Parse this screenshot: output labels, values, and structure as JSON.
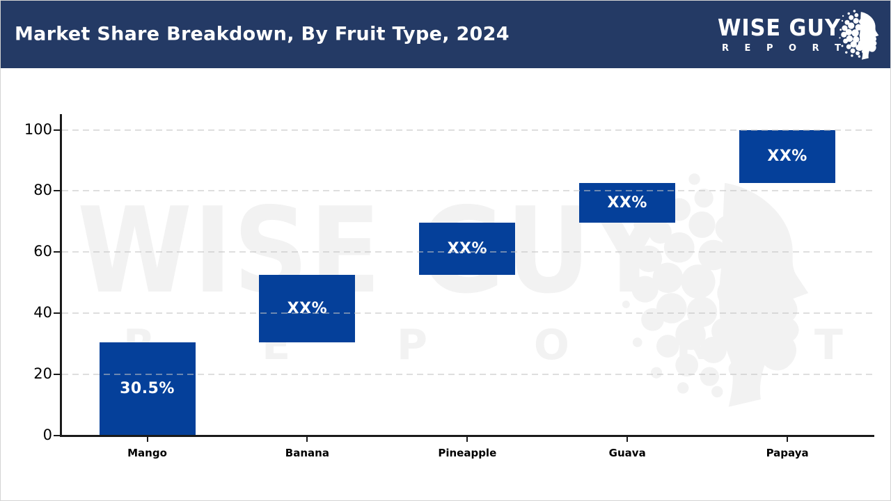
{
  "header": {
    "title": "Market Share Breakdown, By Fruit Type, 2024",
    "logo": {
      "line1": "WISE GUY",
      "line2": "R E P O R T S"
    }
  },
  "watermark": {
    "line1": "WISE GUY",
    "line2": "R E P O R T S"
  },
  "colors": {
    "header_bg": "#243a65",
    "bar": "#05409a",
    "axis": "#1a1a1a",
    "grid": "#dcdcdc",
    "bar_label": "#ffffff",
    "watermark": "#f2f2f2",
    "page_border": "#d4d4d4"
  },
  "chart_data": {
    "type": "bar",
    "subtype": "floating-waterfall",
    "title": "Market Share Breakdown, By Fruit Type, 2024",
    "categories": [
      "Mango",
      "Banana",
      "Pineapple",
      "Guava",
      "Papaya"
    ],
    "bars": [
      {
        "category": "Mango",
        "start": 0,
        "end": 30.5,
        "label": "30.5%"
      },
      {
        "category": "Banana",
        "start": 30.5,
        "end": 52.5,
        "label": "XX%"
      },
      {
        "category": "Pineapple",
        "start": 52.5,
        "end": 69.5,
        "label": "XX%"
      },
      {
        "category": "Guava",
        "start": 69.5,
        "end": 82.5,
        "label": "XX%"
      },
      {
        "category": "Papaya",
        "start": 82.5,
        "end": 100,
        "label": "XX%"
      }
    ],
    "xlabel": "",
    "ylabel": "",
    "y_ticks": [
      0,
      20,
      40,
      60,
      80,
      100
    ],
    "ylim": [
      0,
      105
    ],
    "grid": "horizontal-dashed-above-bars",
    "legend": "none"
  }
}
